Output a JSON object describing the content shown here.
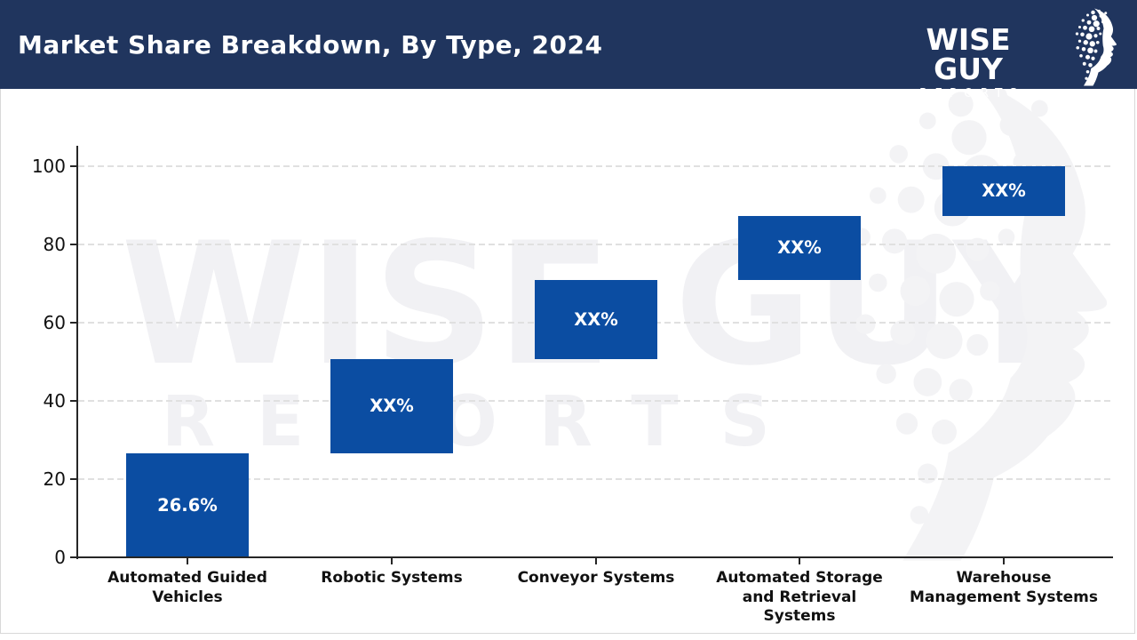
{
  "header": {
    "title": "Market Share Breakdown, By Type, 2024",
    "logo": {
      "line1": "WISE GUY",
      "line2": "REPORTS"
    }
  },
  "watermark": {
    "line1": "WISE GUY",
    "line2": "REPORTS"
  },
  "colors": {
    "header_bg": "#20355e",
    "bar": "#0b4da2",
    "axis": "#262626",
    "grid": "#e0e0e0",
    "watermark": "#f1f1f4",
    "title_text": "#ffffff",
    "label_text": "#111111"
  },
  "chart_data": {
    "type": "bar",
    "subtype": "waterfall",
    "title": "Market Share Breakdown, By Type, 2024",
    "categories": [
      "Automated Guided\nVehicles",
      "Robotic Systems",
      "Conveyor Systems",
      "Automated Storage\nand Retrieval\nSystems",
      "Warehouse\nManagement Systems"
    ],
    "bars": [
      {
        "category": "Automated Guided Vehicles",
        "label": "26.6%",
        "start": 0,
        "end": 26.6
      },
      {
        "category": "Robotic Systems",
        "label": "XX%",
        "start": 26.6,
        "end": 50.7
      },
      {
        "category": "Conveyor Systems",
        "label": "XX%",
        "start": 50.7,
        "end": 70.9
      },
      {
        "category": "Automated Storage and Retrieval Systems",
        "label": "XX%",
        "start": 70.9,
        "end": 87.3
      },
      {
        "category": "Warehouse Management Systems",
        "label": "XX%",
        "start": 87.3,
        "end": 100
      }
    ],
    "xlabel": "",
    "ylabel": "",
    "ylim": [
      0,
      100
    ],
    "yticks": [
      0,
      20,
      40,
      60,
      80,
      100
    ],
    "grid": "horizontal-dashed",
    "legend": "none"
  }
}
